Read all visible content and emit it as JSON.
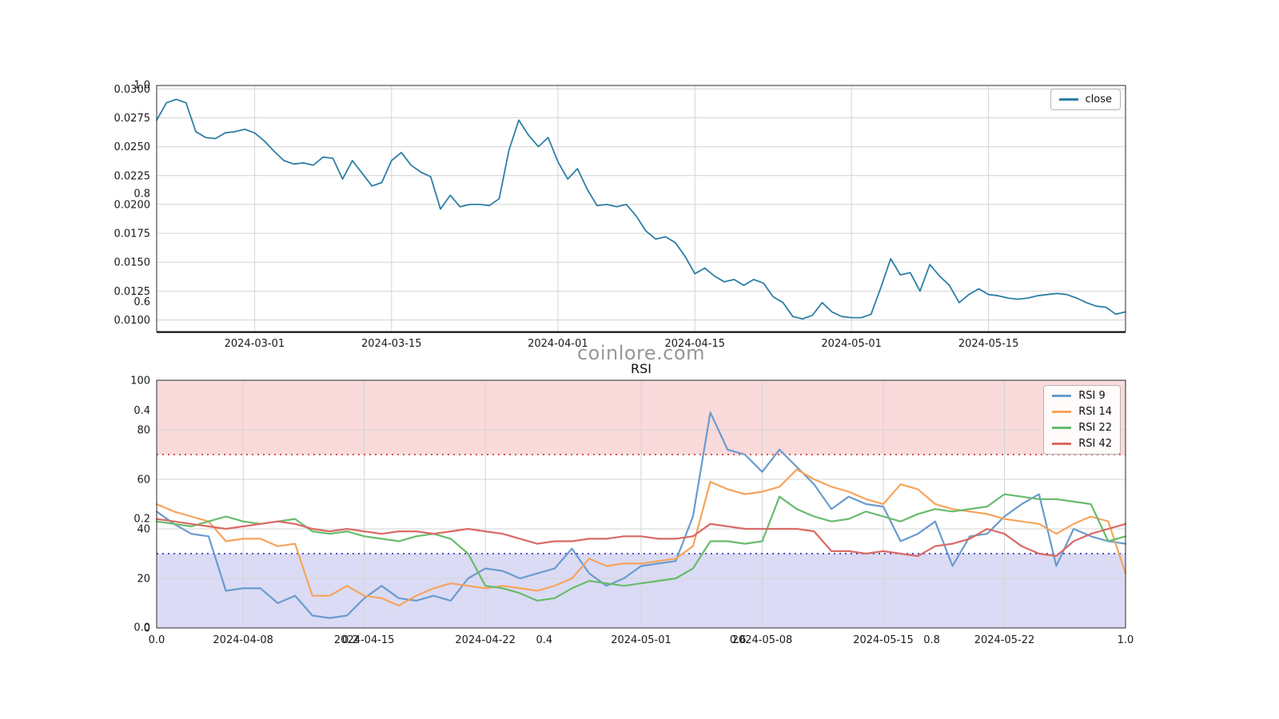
{
  "watermark": "coinlore.com",
  "colors": {
    "grid": "#d4d4d4",
    "axis_text": "#1a1a1a",
    "spine": "#2a2a2a"
  },
  "overlay_axis": {
    "x_tick_labels": [
      "0.0",
      "0.2",
      "0.4",
      "0.6",
      "0.8",
      "1.0"
    ],
    "y_tick_labels": [
      "0.0",
      "0.2",
      "0.4",
      "0.6",
      "0.8",
      "1.0"
    ]
  },
  "chart_data": [
    {
      "type": "line",
      "title": "",
      "ylabel": "",
      "xlabel": "",
      "ylim": [
        0.009,
        0.0303
      ],
      "grid": true,
      "legend_position": "upper right",
      "y_ticks": [
        {
          "v": 0.01,
          "label": "0.0100"
        },
        {
          "v": 0.0125,
          "label": "0.0125"
        },
        {
          "v": 0.015,
          "label": "0.0150"
        },
        {
          "v": 0.0175,
          "label": "0.0175"
        },
        {
          "v": 0.02,
          "label": "0.0200"
        },
        {
          "v": 0.0225,
          "label": "0.0225"
        },
        {
          "v": 0.025,
          "label": "0.0250"
        },
        {
          "v": 0.0275,
          "label": "0.0275"
        },
        {
          "v": 0.03,
          "label": "0.0300"
        }
      ],
      "x_ticks": [
        "2024-03-01",
        "2024-03-15",
        "2024-04-01",
        "2024-04-15",
        "2024-05-01",
        "2024-05-15"
      ],
      "dates": [
        "2024-02-20",
        "2024-02-21",
        "2024-02-22",
        "2024-02-23",
        "2024-02-24",
        "2024-02-25",
        "2024-02-26",
        "2024-02-27",
        "2024-02-28",
        "2024-02-29",
        "2024-03-01",
        "2024-03-02",
        "2024-03-03",
        "2024-03-04",
        "2024-03-05",
        "2024-03-06",
        "2024-03-07",
        "2024-03-08",
        "2024-03-09",
        "2024-03-10",
        "2024-03-11",
        "2024-03-12",
        "2024-03-13",
        "2024-03-14",
        "2024-03-15",
        "2024-03-16",
        "2024-03-17",
        "2024-03-18",
        "2024-03-19",
        "2024-03-20",
        "2024-03-21",
        "2024-03-22",
        "2024-03-23",
        "2024-03-24",
        "2024-03-25",
        "2024-03-26",
        "2024-03-27",
        "2024-03-28",
        "2024-03-29",
        "2024-03-30",
        "2024-03-31",
        "2024-04-01",
        "2024-04-02",
        "2024-04-03",
        "2024-04-04",
        "2024-04-05",
        "2024-04-06",
        "2024-04-07",
        "2024-04-08",
        "2024-04-09",
        "2024-04-10",
        "2024-04-11",
        "2024-04-12",
        "2024-04-13",
        "2024-04-14",
        "2024-04-15",
        "2024-04-16",
        "2024-04-17",
        "2024-04-18",
        "2024-04-19",
        "2024-04-20",
        "2024-04-21",
        "2024-04-22",
        "2024-04-23",
        "2024-04-24",
        "2024-04-25",
        "2024-04-26",
        "2024-04-27",
        "2024-04-28",
        "2024-04-29",
        "2024-04-30",
        "2024-05-01",
        "2024-05-02",
        "2024-05-03",
        "2024-05-04",
        "2024-05-05",
        "2024-05-06",
        "2024-05-07",
        "2024-05-08",
        "2024-05-09",
        "2024-05-10",
        "2024-05-11",
        "2024-05-12",
        "2024-05-13",
        "2024-05-14",
        "2024-05-15",
        "2024-05-16",
        "2024-05-17",
        "2024-05-18",
        "2024-05-19",
        "2024-05-20",
        "2024-05-21",
        "2024-05-22",
        "2024-05-23",
        "2024-05-24",
        "2024-05-25",
        "2024-05-26",
        "2024-05-27",
        "2024-05-28",
        "2024-05-29"
      ],
      "series": [
        {
          "name": "close",
          "color": "#2d7fa6",
          "values": [
            0.0273,
            0.0288,
            0.0291,
            0.0288,
            0.0263,
            0.0258,
            0.0257,
            0.0262,
            0.0263,
            0.0265,
            0.0262,
            0.0255,
            0.0246,
            0.0238,
            0.0235,
            0.0236,
            0.0234,
            0.0241,
            0.024,
            0.0222,
            0.0238,
            0.0227,
            0.0216,
            0.0219,
            0.0238,
            0.0245,
            0.0234,
            0.0228,
            0.0224,
            0.0196,
            0.0208,
            0.0198,
            0.02,
            0.02,
            0.0199,
            0.0205,
            0.0247,
            0.0273,
            0.026,
            0.025,
            0.0258,
            0.0237,
            0.0222,
            0.0231,
            0.0213,
            0.0199,
            0.02,
            0.0198,
            0.02,
            0.019,
            0.0177,
            0.017,
            0.0172,
            0.0167,
            0.0155,
            0.014,
            0.0145,
            0.0138,
            0.0133,
            0.0135,
            0.013,
            0.0135,
            0.0132,
            0.012,
            0.0115,
            0.0103,
            0.0101,
            0.0104,
            0.0115,
            0.0107,
            0.0103,
            0.0102,
            0.0102,
            0.0105,
            0.0128,
            0.0153,
            0.0139,
            0.0141,
            0.0125,
            0.0148,
            0.0138,
            0.013,
            0.0115,
            0.0122,
            0.0127,
            0.0122,
            0.0121,
            0.0119,
            0.0118,
            0.0119,
            0.0121,
            0.0122,
            0.0123,
            0.0122,
            0.0119,
            0.0115,
            0.0112,
            0.0111,
            0.0105,
            0.0107
          ]
        }
      ]
    },
    {
      "type": "line",
      "title": "RSI",
      "ylabel": "",
      "xlabel": "",
      "ylim": [
        0,
        100
      ],
      "grid": true,
      "legend_position": "upper right",
      "overbought_level": 70,
      "oversold_level": 30,
      "bands": [
        {
          "name": "overbought-band",
          "from": 70,
          "to": 100,
          "color": "#fadada"
        },
        {
          "name": "oversold-band",
          "from": 0,
          "to": 30,
          "color": "#dbdbf5"
        }
      ],
      "hlines": [
        {
          "name": "overbought-line",
          "v": 70,
          "color": "#cc2222"
        },
        {
          "name": "oversold-line",
          "v": 30,
          "color": "#1a1aa6"
        }
      ],
      "y_ticks": [
        {
          "v": 0,
          "label": "0"
        },
        {
          "v": 20,
          "label": "20"
        },
        {
          "v": 40,
          "label": "40"
        },
        {
          "v": 60,
          "label": "60"
        },
        {
          "v": 80,
          "label": "80"
        },
        {
          "v": 100,
          "label": "100"
        }
      ],
      "x_ticks": [
        "2024-04-08",
        "2024-04-15",
        "2024-04-22",
        "2024-05-01",
        "2024-05-08",
        "2024-05-15",
        "2024-05-22"
      ],
      "dates": [
        "2024-04-03",
        "2024-04-04",
        "2024-04-05",
        "2024-04-06",
        "2024-04-07",
        "2024-04-08",
        "2024-04-09",
        "2024-04-10",
        "2024-04-11",
        "2024-04-12",
        "2024-04-13",
        "2024-04-14",
        "2024-04-15",
        "2024-04-16",
        "2024-04-17",
        "2024-04-18",
        "2024-04-19",
        "2024-04-20",
        "2024-04-21",
        "2024-04-22",
        "2024-04-23",
        "2024-04-24",
        "2024-04-25",
        "2024-04-26",
        "2024-04-27",
        "2024-04-28",
        "2024-04-29",
        "2024-04-30",
        "2024-05-01",
        "2024-05-02",
        "2024-05-03",
        "2024-05-04",
        "2024-05-05",
        "2024-05-06",
        "2024-05-07",
        "2024-05-08",
        "2024-05-09",
        "2024-05-10",
        "2024-05-11",
        "2024-05-12",
        "2024-05-13",
        "2024-05-14",
        "2024-05-15",
        "2024-05-16",
        "2024-05-17",
        "2024-05-18",
        "2024-05-19",
        "2024-05-20",
        "2024-05-21",
        "2024-05-22",
        "2024-05-23",
        "2024-05-24",
        "2024-05-25",
        "2024-05-26",
        "2024-05-27",
        "2024-05-28",
        "2024-05-29"
      ],
      "series": [
        {
          "name": "RSI 9",
          "color": "#6a9bce",
          "values": [
            47,
            42,
            38,
            37,
            15,
            16,
            16,
            10,
            13,
            5,
            4,
            5,
            12,
            17,
            12,
            11,
            13,
            11,
            20,
            24,
            23,
            20,
            22,
            24,
            32,
            22,
            17,
            20,
            25,
            26,
            27,
            45,
            87,
            72,
            70,
            63,
            72,
            65,
            58,
            48,
            53,
            50,
            49,
            35,
            38,
            43,
            25,
            37,
            38,
            45,
            50,
            54,
            25,
            40,
            37,
            35,
            34
          ]
        },
        {
          "name": "RSI 14",
          "color": "#f7a35c",
          "values": [
            50,
            47,
            45,
            43,
            35,
            36,
            36,
            33,
            34,
            13,
            13,
            17,
            13,
            12,
            9,
            13,
            16,
            18,
            17,
            16,
            17,
            16,
            15,
            17,
            20,
            28,
            25,
            26,
            26,
            27,
            28,
            33,
            59,
            56,
            54,
            55,
            57,
            64,
            60,
            57,
            55,
            52,
            50,
            58,
            56,
            50,
            48,
            47,
            46,
            44,
            43,
            42,
            38,
            42,
            45,
            43,
            22
          ]
        },
        {
          "name": "RSI 22",
          "color": "#68bb6c",
          "values": [
            43,
            42,
            41,
            43,
            45,
            43,
            42,
            43,
            44,
            39,
            38,
            39,
            37,
            36,
            35,
            37,
            38,
            36,
            30,
            17,
            16,
            14,
            11,
            12,
            16,
            19,
            18,
            17,
            18,
            19,
            20,
            24,
            35,
            35,
            34,
            35,
            53,
            48,
            45,
            43,
            44,
            47,
            45,
            43,
            46,
            48,
            47,
            48,
            49,
            54,
            53,
            52,
            52,
            51,
            50,
            35,
            37
          ]
        },
        {
          "name": "RSI 42",
          "color": "#d96a65",
          "values": [
            44,
            43,
            42,
            41,
            40,
            41,
            42,
            43,
            42,
            40,
            39,
            40,
            39,
            38,
            39,
            39,
            38,
            39,
            40,
            39,
            38,
            36,
            34,
            35,
            35,
            36,
            36,
            37,
            37,
            36,
            36,
            37,
            42,
            41,
            40,
            40,
            40,
            40,
            39,
            31,
            31,
            30,
            31,
            30,
            29,
            33,
            34,
            36,
            40,
            38,
            33,
            30,
            29,
            35,
            38,
            40,
            42
          ]
        }
      ]
    }
  ]
}
